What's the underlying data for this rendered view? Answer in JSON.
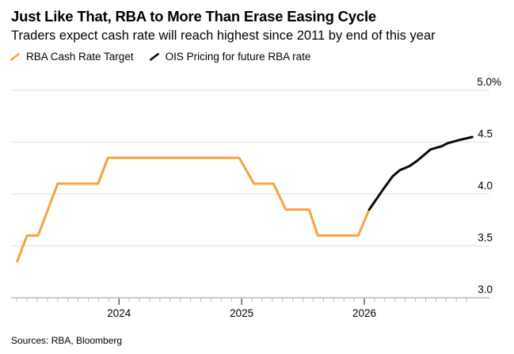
{
  "header": {
    "title": "Just Like That, RBA to More Than Erase Easing Cycle",
    "subtitle": "Traders expect cash rate will reach highest since 2011 by end of this year"
  },
  "legend": [
    {
      "label": "RBA Cash Rate Target",
      "color": "#F8A33C"
    },
    {
      "label": "OIS Pricing for future RBA rate",
      "color": "#0A0A0A"
    }
  ],
  "footer": {
    "sources": "Sources: RBA, Bloomberg"
  },
  "colors": {
    "background": "#ffffff",
    "text": "#000000",
    "grid": "#e4e4e4",
    "axis_line": "#ababab",
    "tick_minor": "#b5b5b5",
    "tick_major": "#3a3a3a",
    "rba_line": "#F8A33C",
    "ois_line": "#0A0A0A"
  },
  "chart_data": {
    "type": "line",
    "title": "Just Like That, RBA to More Than Erase Easing Cycle",
    "subtitle": "Traders expect cash rate will reach highest since 2011 by end of this year",
    "xlabel": "",
    "ylabel": "",
    "ylim": [
      3.0,
      5.0
    ],
    "xlim": [
      2023.12,
      2027.02
    ],
    "grid": true,
    "legend_position": "top-left",
    "y_ticks": [
      {
        "value": 5.0,
        "label": "5.0%"
      },
      {
        "value": 4.5,
        "label": "4.5"
      },
      {
        "value": 4.0,
        "label": "4.0"
      },
      {
        "value": 3.5,
        "label": "3.5"
      },
      {
        "value": 3.0,
        "label": "3.0"
      }
    ],
    "x_ticks": [
      {
        "value": 2024,
        "label": "2024"
      },
      {
        "value": 2025,
        "label": "2025"
      },
      {
        "value": 2026,
        "label": "2026"
      }
    ],
    "series": [
      {
        "name": "RBA Cash Rate Target",
        "color": "#F8A33C",
        "points": [
          [
            2023.17,
            3.35
          ],
          [
            2023.25,
            3.6
          ],
          [
            2023.34,
            3.6
          ],
          [
            2023.42,
            3.85
          ],
          [
            2023.5,
            4.1
          ],
          [
            2023.83,
            4.1
          ],
          [
            2023.91,
            4.35
          ],
          [
            2024.98,
            4.35
          ],
          [
            2025.1,
            4.1
          ],
          [
            2025.26,
            4.1
          ],
          [
            2025.36,
            3.85
          ],
          [
            2025.55,
            3.85
          ],
          [
            2025.62,
            3.6
          ],
          [
            2025.95,
            3.6
          ],
          [
            2026.04,
            3.85
          ]
        ]
      },
      {
        "name": "OIS Pricing for future RBA rate",
        "color": "#0A0A0A",
        "points": [
          [
            2026.04,
            3.85
          ],
          [
            2026.15,
            4.04
          ],
          [
            2026.23,
            4.17
          ],
          [
            2026.29,
            4.23
          ],
          [
            2026.37,
            4.27
          ],
          [
            2026.43,
            4.32
          ],
          [
            2026.54,
            4.43
          ],
          [
            2026.63,
            4.46
          ],
          [
            2026.68,
            4.49
          ],
          [
            2026.77,
            4.52
          ],
          [
            2026.88,
            4.55
          ]
        ]
      }
    ]
  }
}
